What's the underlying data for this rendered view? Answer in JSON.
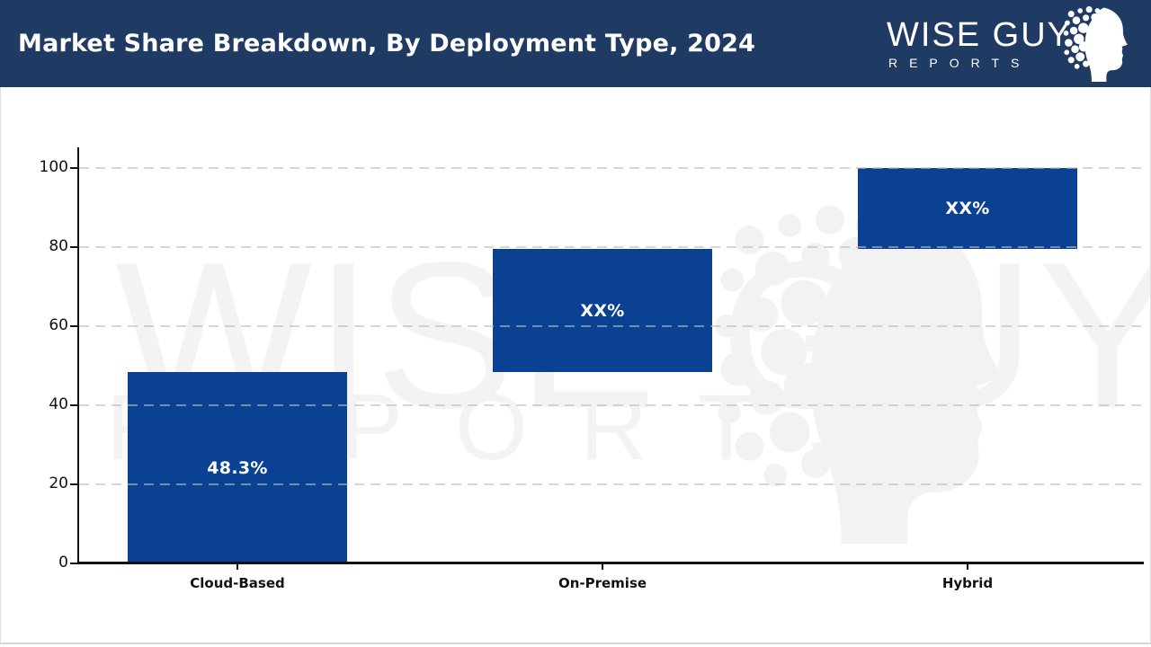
{
  "header": {
    "title": "Market Share Breakdown, By Deployment Type, 2024",
    "background_color": "#1f3a63",
    "brand": {
      "line1": "WISE GUY",
      "line2": "REPORTS",
      "logo_icon": "dotted-head-profile-icon"
    }
  },
  "watermark": {
    "line1": "WISE GUY",
    "line2": "REPORTS",
    "icon": "dotted-head-profile-icon"
  },
  "chart_data": {
    "type": "bar",
    "subtype": "waterfall",
    "title": "Market Share Breakdown, By Deployment Type, 2024",
    "categories": [
      "Cloud-Based",
      "On-Premise",
      "Hybrid"
    ],
    "segments": [
      {
        "category": "Cloud-Based",
        "start": 0,
        "end": 48.3,
        "value_label": "48.3%"
      },
      {
        "category": "On-Premise",
        "start": 48.3,
        "end": 79.5,
        "value_label": "XX%"
      },
      {
        "category": "Hybrid",
        "start": 79.5,
        "end": 100,
        "value_label": "XX%"
      }
    ],
    "xlabel": "",
    "ylabel": "",
    "yticks": [
      0,
      20,
      40,
      60,
      80,
      100
    ],
    "ylim": [
      0,
      104
    ],
    "grid": "horizontal dashed, drawn over bars",
    "legend": "none",
    "bar_color": "#0a4193",
    "bar_label_color": "#ffffff",
    "axis_color": "#111111"
  }
}
